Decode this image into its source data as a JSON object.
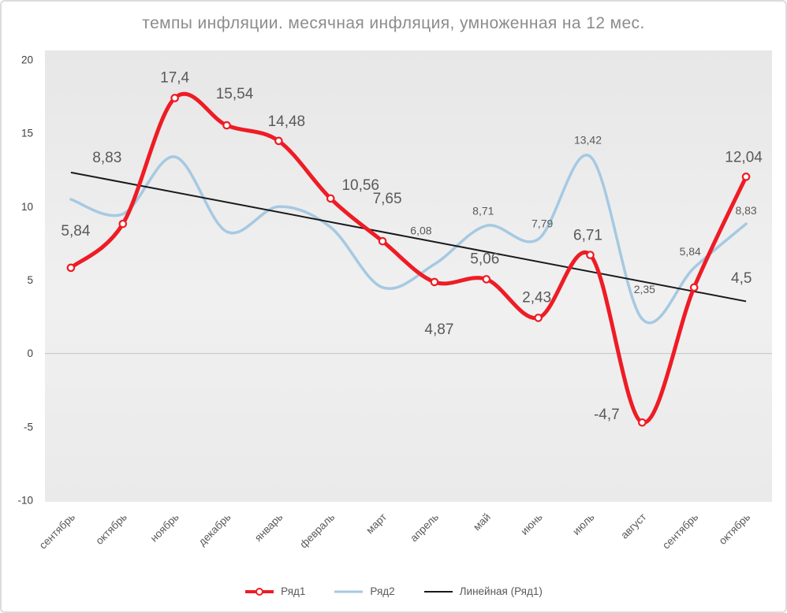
{
  "chart_data": {
    "type": "line",
    "title": "темпы инфляции. месячная инфляция, умноженная на 12 мес.",
    "categories": [
      "сентябрь",
      "октябрь",
      "ноябрь",
      "декабрь",
      "январь",
      "февраль",
      "март",
      "апрель",
      "май",
      "июнь",
      "июль",
      "август",
      "сентябрь",
      "октябрь"
    ],
    "ylim": [
      -10,
      20
    ],
    "yticks": [
      20,
      15,
      10,
      5,
      0,
      -5,
      -10
    ],
    "grid": "zero-line-only",
    "legend_position": "bottom",
    "plot_bg_top": "#e7e7e7",
    "plot_bg_bottom": "#ebebeb",
    "series": [
      {
        "name": "Ряд1",
        "color": "#ee1c25",
        "width": 5,
        "marker": "circle",
        "smooth": true,
        "values": [
          5.84,
          8.83,
          17.4,
          15.54,
          14.48,
          10.56,
          7.65,
          4.87,
          5.06,
          2.43,
          6.71,
          -4.7,
          4.5,
          12.04
        ],
        "labels": [
          {
            "text": "5,84",
            "dx": 6,
            "dy": -47
          },
          {
            "text": "8,83",
            "dx": -20,
            "dy": -84
          },
          {
            "text": "17,4",
            "dx": 0,
            "dy": -26
          },
          {
            "text": "15,54",
            "dx": 10,
            "dy": -40
          },
          {
            "text": "14,48",
            "dx": 10,
            "dy": -25
          },
          {
            "text": "10,56",
            "dx": 38,
            "dy": -17
          },
          {
            "text": "7,65",
            "dx": 6,
            "dy": -54
          },
          {
            "text": "4,87",
            "dx": 6,
            "dy": 60
          },
          {
            "text": "5,06",
            "dx": -2,
            "dy": -26
          },
          {
            "text": "2,43",
            "dx": -2,
            "dy": -26
          },
          {
            "text": "6,71",
            "dx": -3,
            "dy": -25
          },
          {
            "text": "-4,7",
            "dx": -45,
            "dy": -10
          },
          {
            "text": "4,5",
            "dx": 60,
            "dy": -12
          },
          {
            "text": "12,04",
            "dx": -3,
            "dy": -25
          }
        ]
      },
      {
        "name": "Ряд2",
        "color": "#a6c9e2",
        "width": 3.5,
        "marker": "none",
        "smooth": true,
        "values": [
          10.5,
          9.5,
          13.4,
          8.3,
          10.0,
          8.6,
          4.5,
          6.08,
          8.71,
          7.79,
          13.42,
          2.35,
          5.84,
          8.83
        ],
        "labels": [
          null,
          null,
          null,
          null,
          null,
          null,
          null,
          {
            "text": "6,08",
            "dx": -17,
            "dy": -43
          },
          {
            "text": "8,71",
            "dx": -4,
            "dy": -19
          },
          {
            "text": "7,79",
            "dx": 5,
            "dy": -20
          },
          {
            "text": "13,42",
            "dx": -3,
            "dy": -21
          },
          {
            "text": "2,35",
            "dx": 3,
            "dy": -38
          },
          {
            "text": "5,84",
            "dx": -5,
            "dy": -21
          },
          {
            "text": "8,83",
            "dx": 0,
            "dy": -17
          }
        ]
      }
    ],
    "trendline": {
      "name": "Линейная (Ряд1)",
      "color": "#1a1a1a",
      "width": 2,
      "based_on": "Ряд1",
      "endpoints": [
        12.33,
        3.55
      ]
    }
  },
  "legend": {
    "items": [
      {
        "label": "Ряд1"
      },
      {
        "label": "Ряд2"
      },
      {
        "label": "Линейная (Ряд1)"
      }
    ]
  }
}
